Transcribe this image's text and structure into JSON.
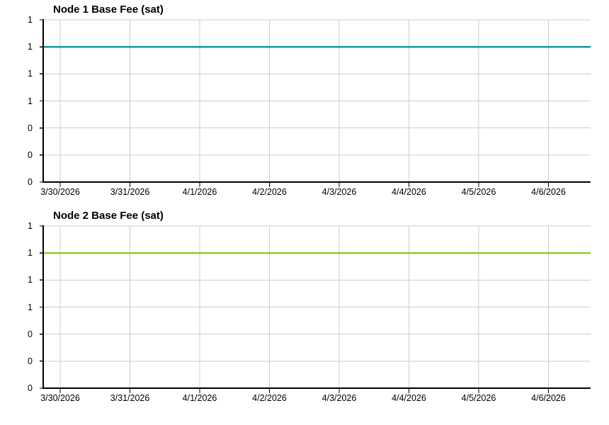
{
  "page": {
    "background": "#ffffff"
  },
  "colors": {
    "node1_line": "#1B99A1",
    "node2_line": "#9CC63C",
    "gridline": "#CDCDCD",
    "axis": "#000000",
    "text": "#000000"
  },
  "chart_data": [
    {
      "type": "line",
      "title": "Node 1 Base Fee (sat)",
      "x": [
        "3/30/2026",
        "3/31/2026",
        "4/1/2026",
        "4/2/2026",
        "4/3/2026",
        "4/4/2026",
        "4/5/2026",
        "4/6/2026"
      ],
      "values": [
        1,
        1,
        1,
        1,
        1,
        1,
        1,
        1
      ],
      "xlabel": "",
      "ylabel": "",
      "ylim": [
        0,
        1.2
      ],
      "y_ticks": [
        1.2,
        1.0,
        0.8,
        0.6,
        0.4,
        0.2,
        0
      ],
      "y_tick_labels": [
        "1",
        "1",
        "1",
        "1",
        "0",
        "0",
        "0"
      ],
      "x_tick_labels": [
        "3/30/2026",
        "3/31/2026",
        "4/1/2026",
        "4/2/2026",
        "4/3/2026",
        "4/4/2026",
        "4/5/2026",
        "4/6/2026"
      ],
      "line_color": "#1B99A1",
      "grid": true,
      "legend": "none",
      "line_spans_full_width": true
    },
    {
      "type": "line",
      "title": "Node 2 Base Fee (sat)",
      "x": [
        "3/30/2026",
        "3/31/2026",
        "4/1/2026",
        "4/2/2026",
        "4/3/2026",
        "4/4/2026",
        "4/5/2026",
        "4/6/2026"
      ],
      "values": [
        1,
        1,
        1,
        1,
        1,
        1,
        1,
        1
      ],
      "xlabel": "",
      "ylabel": "",
      "ylim": [
        0,
        1.2
      ],
      "y_ticks": [
        1.2,
        1.0,
        0.8,
        0.6,
        0.4,
        0.2,
        0
      ],
      "y_tick_labels": [
        "1",
        "1",
        "1",
        "1",
        "0",
        "0",
        "0"
      ],
      "x_tick_labels": [
        "3/30/2026",
        "3/31/2026",
        "4/1/2026",
        "4/2/2026",
        "4/3/2026",
        "4/4/2026",
        "4/5/2026",
        "4/6/2026"
      ],
      "line_color": "#9CC63C",
      "grid": true,
      "legend": "none",
      "line_spans_full_width": true
    }
  ]
}
